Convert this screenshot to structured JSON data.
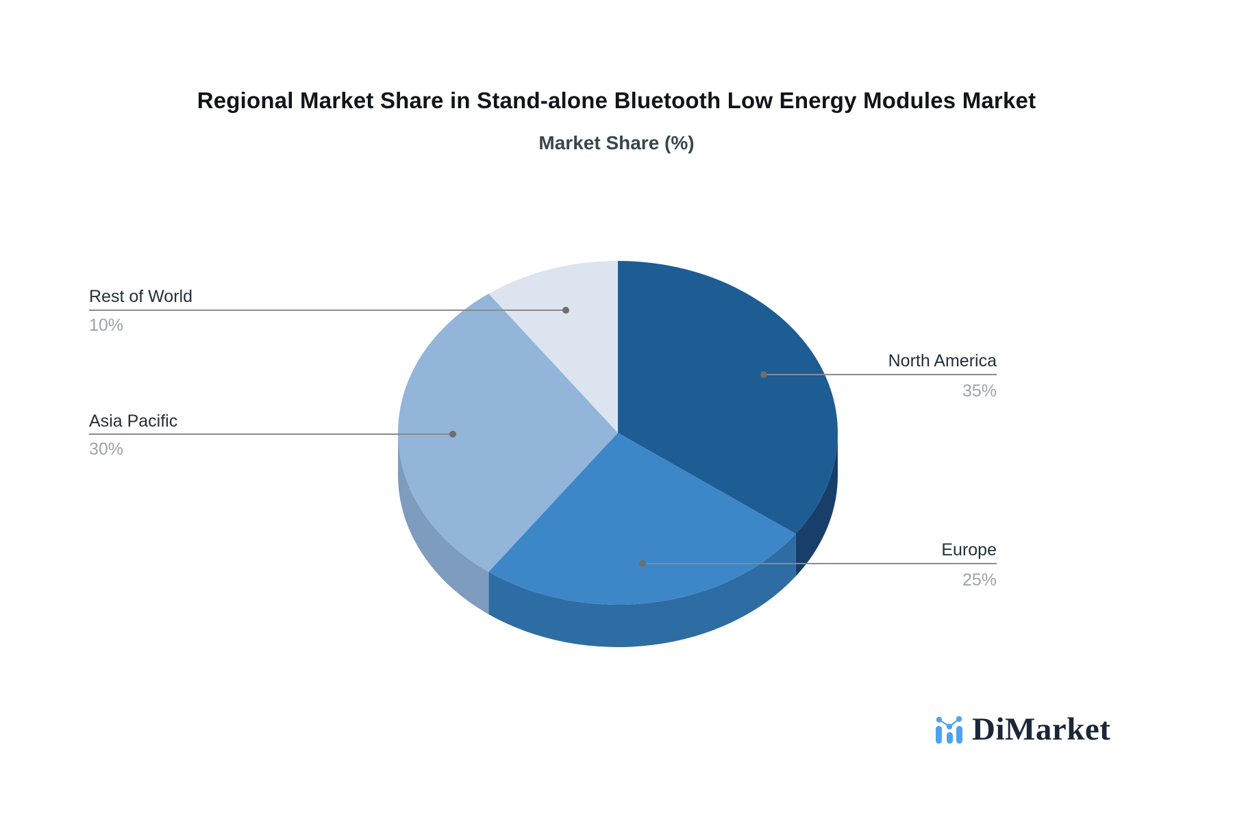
{
  "header": {
    "title": "Regional Market Share in Stand-alone Bluetooth Low Energy Modules Market",
    "subtitle": "Market Share (%)"
  },
  "chart_data": {
    "type": "pie",
    "title": "Regional Market Share in Stand-alone Bluetooth Low Energy Modules Market",
    "subtitle": "Market Share (%)",
    "unit": "percent",
    "style": "3d-pie",
    "start_angle_deg": 0,
    "direction": "clockwise",
    "categories": [
      "North America",
      "Europe",
      "Asia Pacific",
      "Rest of World"
    ],
    "values": [
      35,
      25,
      30,
      10
    ],
    "labels": [
      {
        "name": "North America",
        "value_label": "35%",
        "side": "right"
      },
      {
        "name": "Europe",
        "value_label": "25%",
        "side": "right"
      },
      {
        "name": "Asia Pacific",
        "value_label": "30%",
        "side": "left"
      },
      {
        "name": "Rest of World",
        "value_label": "10%",
        "side": "left"
      }
    ],
    "colors": [
      "#1E5C94",
      "#3D87C8",
      "#92B5D9",
      "#DCE4EF"
    ],
    "side_colors": [
      "#173F69",
      "#2E6CA4",
      "#7E9CBE",
      "#B9C5D6"
    ],
    "leader_line_color": "#8A8A8A",
    "leader_dot_color": "#6E6E6E"
  },
  "branding": {
    "logo_text": "DiMarket",
    "logo_icon": "bar-chart-trendline-icon",
    "logo_text_color": "#1B2738",
    "logo_accent_color": "#4DA3F2"
  }
}
